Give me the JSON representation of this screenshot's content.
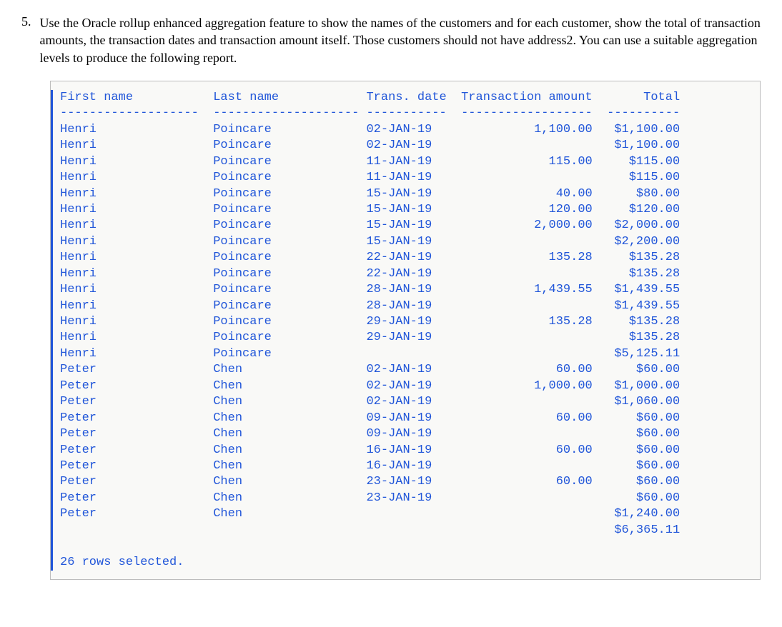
{
  "question": {
    "number": "5.",
    "text": "Use the Oracle rollup enhanced aggregation feature to show the names of the customers and for each customer, show the total of transaction amounts, the transaction dates and transaction amount itself. Those customers should not have address2. You can use a suitable aggregation levels to produce the following report."
  },
  "terminal": {
    "font_family": "Consolas",
    "font_size_pt": 13,
    "text_color": "#2156d9",
    "background_color": "#f9f9f7",
    "border_color": "#bdbdbd",
    "left_bar_color": "#2156d9",
    "columns": {
      "first_name": {
        "label": "First name",
        "width": 20,
        "align": "left"
      },
      "last_name": {
        "label": "Last name",
        "width": 20,
        "align": "left"
      },
      "trans_date": {
        "label": "Trans. date",
        "width": 12,
        "align": "left"
      },
      "amount": {
        "label": "Transaction amount",
        "width": 18,
        "align": "right"
      },
      "total": {
        "label": "Total",
        "width": 11,
        "align": "right"
      }
    },
    "header_dashes": {
      "first_name": "-------------------",
      "last_name": "--------------------",
      "trans_date": "-----------",
      "amount": "------------------",
      "total": "----------"
    },
    "rows": [
      {
        "first": "Henri",
        "last": "Poincare",
        "date": "02-JAN-19",
        "amount": "1,100.00",
        "total": "$1,100.00"
      },
      {
        "first": "Henri",
        "last": "Poincare",
        "date": "02-JAN-19",
        "amount": "",
        "total": "$1,100.00"
      },
      {
        "first": "Henri",
        "last": "Poincare",
        "date": "11-JAN-19",
        "amount": "115.00",
        "total": "$115.00"
      },
      {
        "first": "Henri",
        "last": "Poincare",
        "date": "11-JAN-19",
        "amount": "",
        "total": "$115.00"
      },
      {
        "first": "Henri",
        "last": "Poincare",
        "date": "15-JAN-19",
        "amount": "40.00",
        "total": "$80.00"
      },
      {
        "first": "Henri",
        "last": "Poincare",
        "date": "15-JAN-19",
        "amount": "120.00",
        "total": "$120.00"
      },
      {
        "first": "Henri",
        "last": "Poincare",
        "date": "15-JAN-19",
        "amount": "2,000.00",
        "total": "$2,000.00"
      },
      {
        "first": "Henri",
        "last": "Poincare",
        "date": "15-JAN-19",
        "amount": "",
        "total": "$2,200.00"
      },
      {
        "first": "Henri",
        "last": "Poincare",
        "date": "22-JAN-19",
        "amount": "135.28",
        "total": "$135.28"
      },
      {
        "first": "Henri",
        "last": "Poincare",
        "date": "22-JAN-19",
        "amount": "",
        "total": "$135.28"
      },
      {
        "first": "Henri",
        "last": "Poincare",
        "date": "28-JAN-19",
        "amount": "1,439.55",
        "total": "$1,439.55"
      },
      {
        "first": "Henri",
        "last": "Poincare",
        "date": "28-JAN-19",
        "amount": "",
        "total": "$1,439.55"
      },
      {
        "first": "Henri",
        "last": "Poincare",
        "date": "29-JAN-19",
        "amount": "135.28",
        "total": "$135.28"
      },
      {
        "first": "Henri",
        "last": "Poincare",
        "date": "29-JAN-19",
        "amount": "",
        "total": "$135.28"
      },
      {
        "first": "Henri",
        "last": "Poincare",
        "date": "",
        "amount": "",
        "total": "$5,125.11"
      },
      {
        "first": "Peter",
        "last": "Chen",
        "date": "02-JAN-19",
        "amount": "60.00",
        "total": "$60.00"
      },
      {
        "first": "Peter",
        "last": "Chen",
        "date": "02-JAN-19",
        "amount": "1,000.00",
        "total": "$1,000.00"
      },
      {
        "first": "Peter",
        "last": "Chen",
        "date": "02-JAN-19",
        "amount": "",
        "total": "$1,060.00"
      },
      {
        "first": "Peter",
        "last": "Chen",
        "date": "09-JAN-19",
        "amount": "60.00",
        "total": "$60.00"
      },
      {
        "first": "Peter",
        "last": "Chen",
        "date": "09-JAN-19",
        "amount": "",
        "total": "$60.00"
      },
      {
        "first": "Peter",
        "last": "Chen",
        "date": "16-JAN-19",
        "amount": "60.00",
        "total": "$60.00"
      },
      {
        "first": "Peter",
        "last": "Chen",
        "date": "16-JAN-19",
        "amount": "",
        "total": "$60.00"
      },
      {
        "first": "Peter",
        "last": "Chen",
        "date": "23-JAN-19",
        "amount": "60.00",
        "total": "$60.00"
      },
      {
        "first": "Peter",
        "last": "Chen",
        "date": "23-JAN-19",
        "amount": "",
        "total": "$60.00"
      },
      {
        "first": "Peter",
        "last": "Chen",
        "date": "",
        "amount": "",
        "total": "$1,240.00"
      },
      {
        "first": "",
        "last": "",
        "date": "",
        "amount": "",
        "total": "$6,365.11"
      }
    ],
    "footer": "26 rows selected."
  }
}
